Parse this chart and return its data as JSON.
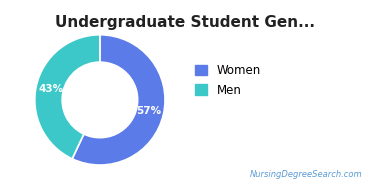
{
  "title": "Undergraduate Student Gen...",
  "slices": [
    57,
    43
  ],
  "labels": [
    "Women",
    "Men"
  ],
  "colors": [
    "#5b7be8",
    "#3cc8c8"
  ],
  "legend_labels": [
    "Women",
    "Men"
  ],
  "watermark": "NursingDegreeSearch.com",
  "watermark_color": "#5b9bd5",
  "bg_color": "#ffffff",
  "title_fontsize": 11,
  "donut_width": 0.42
}
